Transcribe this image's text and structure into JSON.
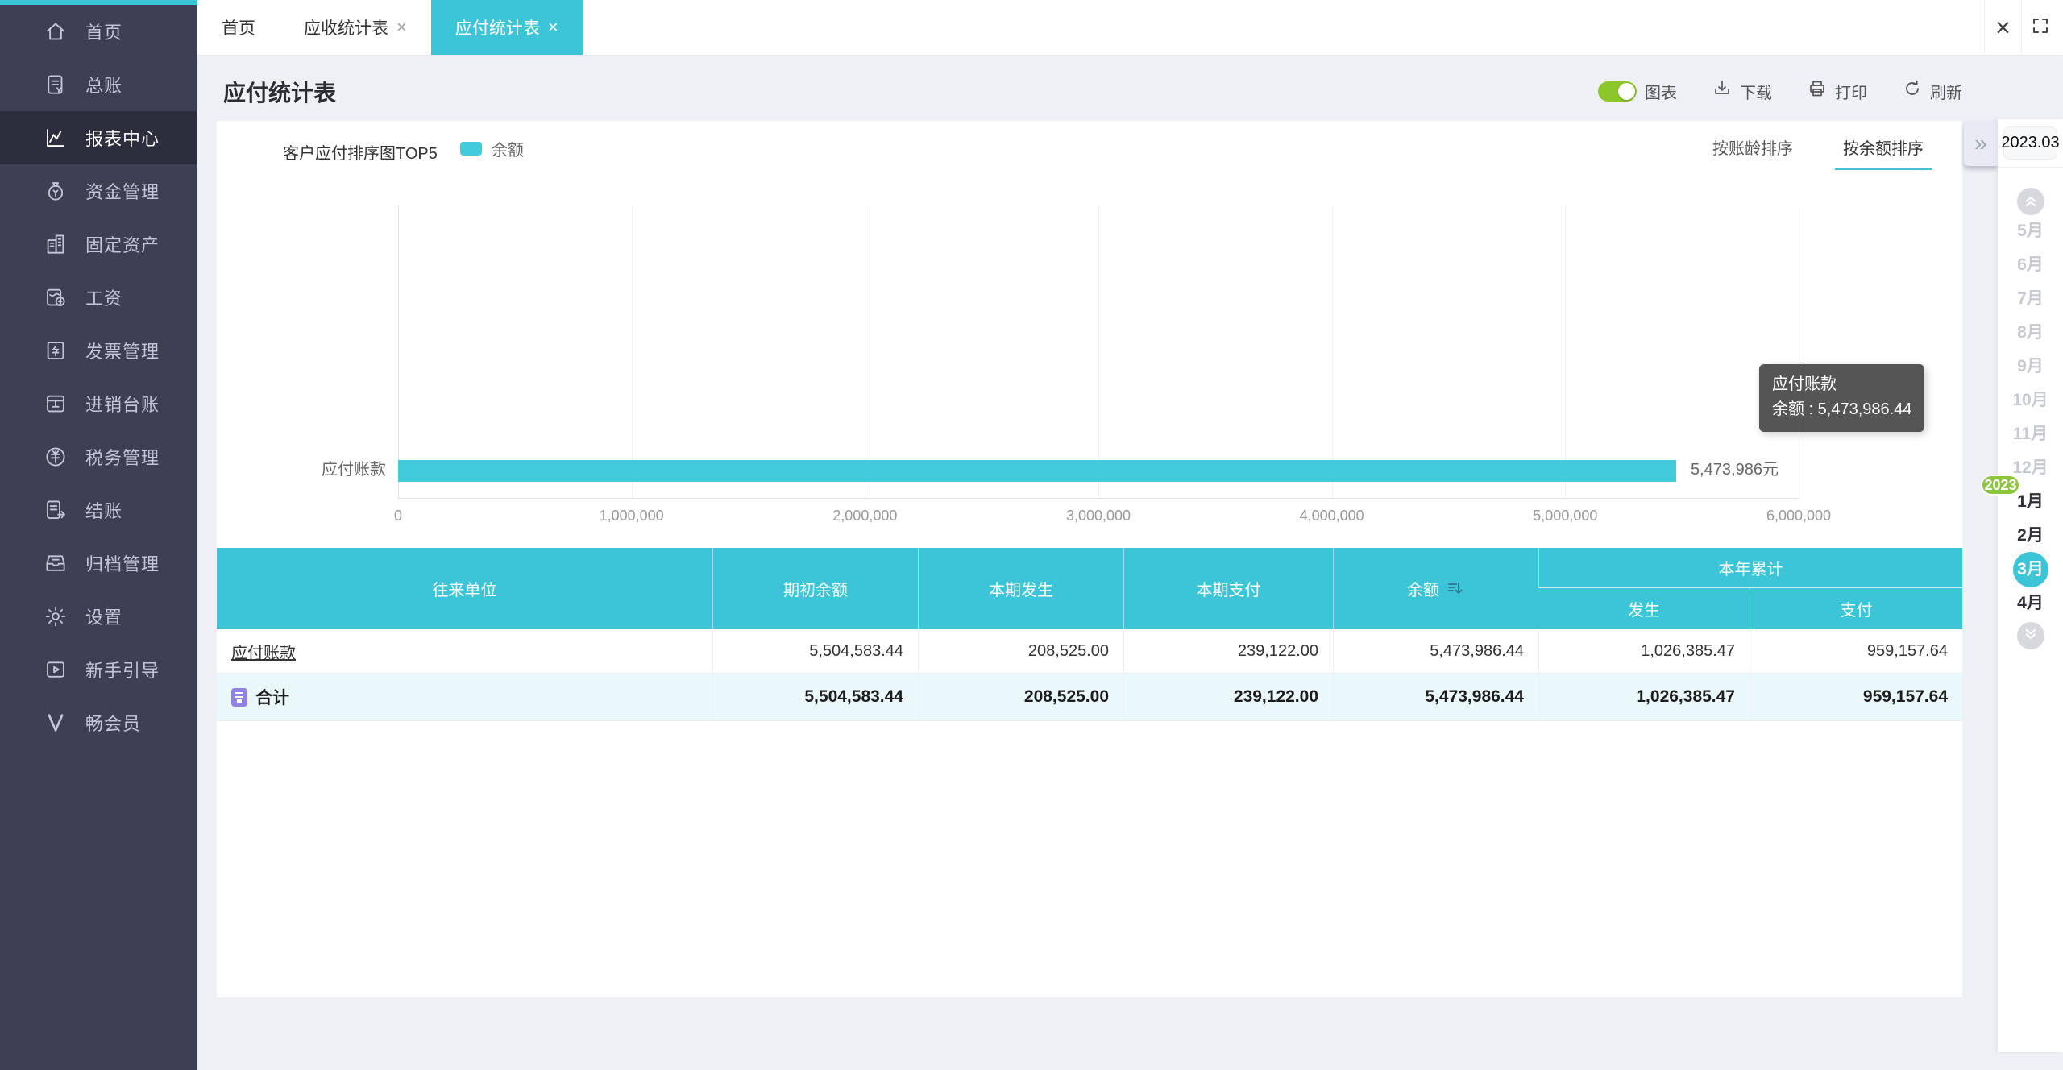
{
  "colors": {
    "accent": "#3BC5D6",
    "bar_color": "#41CBDB",
    "sidebar_bg": "#3D3F55",
    "sidebar_active_bg": "#2C2D3D",
    "page_bg": "#EEF0F5",
    "toggle_green": "#8DC62B",
    "badge_green": "#8CC63F",
    "tooltip_bg": "rgba(70,70,70,0.92)",
    "total_row_bg": "#EAF7FB",
    "calc_purple": "#8F82E2"
  },
  "sidebar": {
    "items": [
      {
        "key": "home",
        "label": "首页",
        "icon": "home-icon",
        "active": false
      },
      {
        "key": "ledger",
        "label": "总账",
        "icon": "ledger-icon",
        "active": false
      },
      {
        "key": "reports",
        "label": "报表中心",
        "icon": "report-center-icon",
        "active": true
      },
      {
        "key": "funds",
        "label": "资金管理",
        "icon": "funds-icon",
        "active": false
      },
      {
        "key": "assets",
        "label": "固定资产",
        "icon": "fixed-assets-icon",
        "active": false
      },
      {
        "key": "salary",
        "label": "工资",
        "icon": "salary-icon",
        "active": false
      },
      {
        "key": "invoice",
        "label": "发票管理",
        "icon": "invoice-icon",
        "active": false
      },
      {
        "key": "inventory",
        "label": "进销台账",
        "icon": "inventory-icon",
        "active": false
      },
      {
        "key": "tax",
        "label": "税务管理",
        "icon": "tax-icon",
        "active": false
      },
      {
        "key": "closing",
        "label": "结账",
        "icon": "closing-icon",
        "active": false
      },
      {
        "key": "archive",
        "label": "归档管理",
        "icon": "archive-icon",
        "active": false
      },
      {
        "key": "settings",
        "label": "设置",
        "icon": "settings-icon",
        "active": false
      },
      {
        "key": "guide",
        "label": "新手引导",
        "icon": "guide-icon",
        "active": false
      },
      {
        "key": "member",
        "label": "畅会员",
        "icon": "member-icon",
        "active": false
      }
    ]
  },
  "tabs": [
    {
      "label": "首页",
      "closable": false,
      "active": false
    },
    {
      "label": "应收统计表",
      "closable": true,
      "active": false
    },
    {
      "label": "应付统计表",
      "closable": true,
      "active": true
    }
  ],
  "window_controls": {
    "close": "×",
    "fullscreen": "fullscreen-icon"
  },
  "page": {
    "title": "应付统计表"
  },
  "toolbar": {
    "chart_toggle": {
      "label": "图表",
      "on": true
    },
    "actions": [
      {
        "key": "download",
        "label": "下载",
        "icon": "download-icon"
      },
      {
        "key": "print",
        "label": "打印",
        "icon": "print-icon"
      },
      {
        "key": "refresh",
        "label": "刷新",
        "icon": "refresh-icon"
      }
    ]
  },
  "chart_data": {
    "type": "bar",
    "orientation": "horizontal",
    "title": "客户应付排序图TOP5",
    "legend": [
      {
        "label": "余额",
        "color": "#41CBDB"
      }
    ],
    "legend_position": "top",
    "grid": true,
    "categories": [
      "应付账款"
    ],
    "values": [
      5473986.44
    ],
    "value_labels": [
      "5,473,986元"
    ],
    "xlim": [
      0,
      6000000
    ],
    "x_ticks": [
      "0",
      "1,000,000",
      "2,000,000",
      "3,000,000",
      "4,000,000",
      "5,000,000",
      "6,000,000"
    ],
    "sort_tabs": [
      {
        "label": "按账龄排序",
        "active": false
      },
      {
        "label": "按余额排序",
        "active": true
      }
    ],
    "tooltip": {
      "title": "应付账款",
      "text": "余额 : 5,473,986.44"
    }
  },
  "table": {
    "columns": [
      "往来单位",
      "期初余额",
      "本期发生",
      "本期支付",
      "余额"
    ],
    "group": {
      "label": "本年累计",
      "children": [
        "发生",
        "支付"
      ]
    },
    "sort_column": "余额",
    "rows": [
      {
        "name": "应付账款",
        "link": true,
        "values": [
          "5,504,583.44",
          "208,525.00",
          "239,122.00",
          "5,473,986.44",
          "1,026,385.47",
          "959,157.64"
        ]
      }
    ],
    "total": {
      "label": "合计",
      "values": [
        "5,504,583.44",
        "208,525.00",
        "239,122.00",
        "5,473,986.44",
        "1,026,385.47",
        "959,157.64"
      ]
    }
  },
  "period_panel": {
    "current": "2023.03",
    "year_badge": "2023",
    "months": [
      {
        "label": "5月",
        "state": "disabled"
      },
      {
        "label": "6月",
        "state": "disabled"
      },
      {
        "label": "7月",
        "state": "disabled"
      },
      {
        "label": "8月",
        "state": "disabled"
      },
      {
        "label": "9月",
        "state": "disabled"
      },
      {
        "label": "10月",
        "state": "disabled"
      },
      {
        "label": "11月",
        "state": "disabled"
      },
      {
        "label": "12月",
        "state": "disabled"
      },
      {
        "label": "1月",
        "state": "normal"
      },
      {
        "label": "2月",
        "state": "normal"
      },
      {
        "label": "3月",
        "state": "active"
      },
      {
        "label": "4月",
        "state": "normal"
      }
    ],
    "year_badge_before_index": 8
  }
}
